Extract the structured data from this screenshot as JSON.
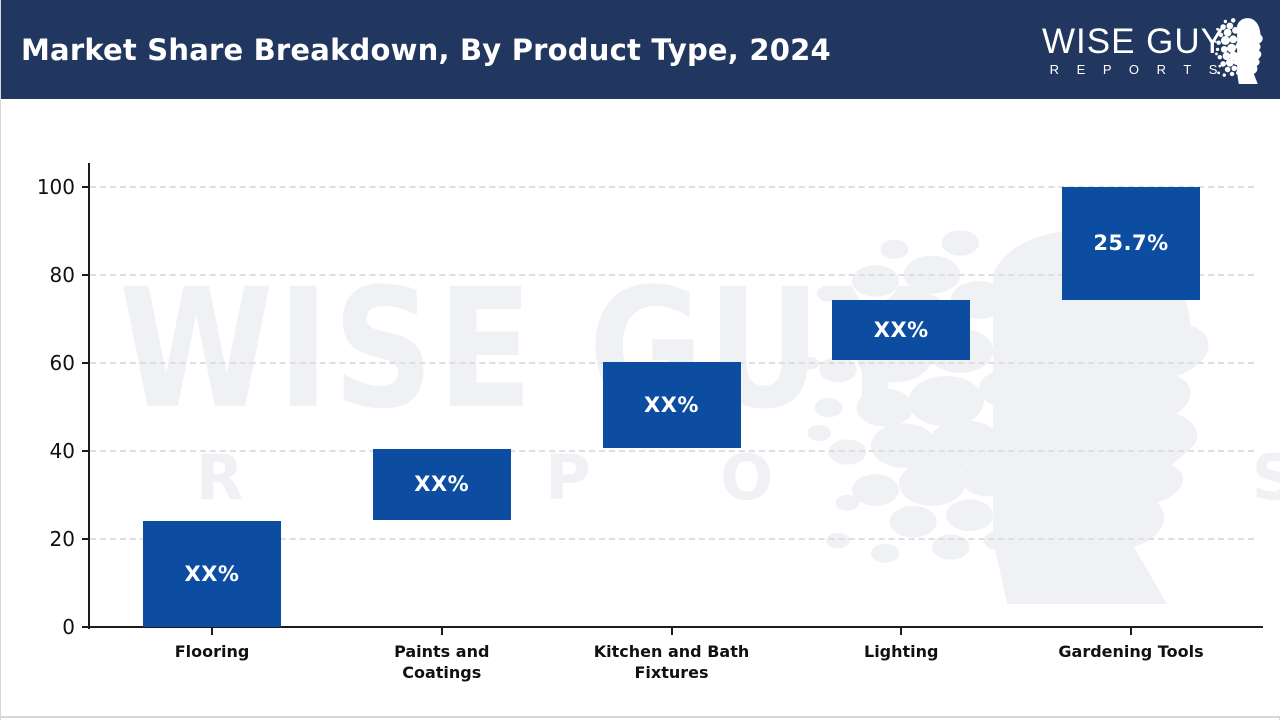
{
  "header": {
    "title": "Market Share Breakdown, By Product Type, 2024",
    "logo": {
      "line1": "WISE GUY",
      "line2": "R E P O R T S"
    }
  },
  "watermark": {
    "line1": "WISE GUY",
    "line2": "R E P O R T S"
  },
  "chart_data": {
    "type": "bar",
    "subtype": "waterfall",
    "title": "Market Share Breakdown, By Product Type, 2024",
    "categories": [
      "Flooring",
      "Paints and\nCoatings",
      "Kitchen and Bath\nFixtures",
      "Lighting",
      "Gardening Tools"
    ],
    "bars": [
      {
        "category": "Flooring",
        "start": 0,
        "end": 24.1,
        "label": "XX%"
      },
      {
        "category": "Paints and Coatings",
        "start": 24.3,
        "end": 40.5,
        "label": "XX%"
      },
      {
        "category": "Kitchen and Bath Fixtures",
        "start": 40.6,
        "end": 60.2,
        "label": "XX%"
      },
      {
        "category": "Lighting",
        "start": 60.7,
        "end": 74.3,
        "label": "XX%"
      },
      {
        "category": "Gardening Tools",
        "start": 74.4,
        "end": 100,
        "label": "25.7%"
      }
    ],
    "yticks": [
      0,
      20,
      40,
      60,
      80,
      100
    ],
    "ylim": [
      0,
      105
    ],
    "xlabel": "",
    "ylabel": "",
    "grid": "horizontal-dashed",
    "legend": "none",
    "bar_color": "#0c4da2",
    "bar_label_color": "#ffffff"
  },
  "colors": {
    "header_bg": "#223760",
    "bar": "#0c4da2",
    "watermark": "#f0f1f4",
    "axis": "#1c1c1c",
    "grid": "#dfdfe1",
    "border": "#d8d8d8"
  }
}
